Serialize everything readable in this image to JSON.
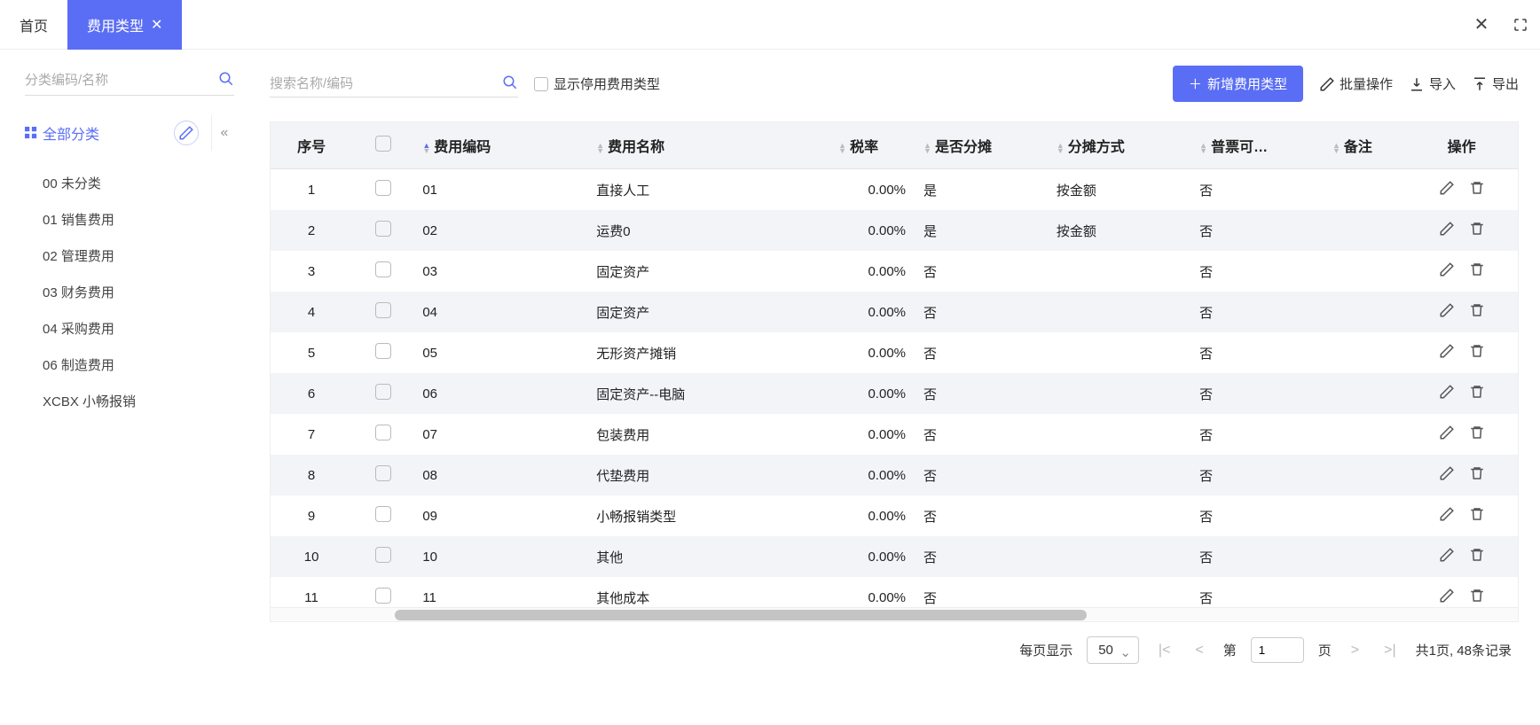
{
  "tabs": {
    "home": "首页",
    "active": "费用类型"
  },
  "sidebar": {
    "search_ph": "分类编码/名称",
    "all_label": "全部分类",
    "items": [
      "00 未分类",
      "01 销售费用",
      "02 管理费用",
      "03 财务费用",
      "04 采购费用",
      "06 制造费用",
      "XCBX 小畅报销"
    ]
  },
  "toolbar": {
    "search_ph": "搜索名称/编码",
    "show_disabled": "显示停用费用类型",
    "add": "新增费用类型",
    "batch": "批量操作",
    "import": "导入",
    "export": "导出"
  },
  "columns": {
    "seq": "序号",
    "code": "费用编码",
    "name": "费用名称",
    "rate": "税率",
    "allocate": "是否分摊",
    "method": "分摊方式",
    "plain": "普票可…",
    "remark": "备注",
    "ops": "操作"
  },
  "rows": [
    {
      "seq": "1",
      "code": "01",
      "name": "直接人工",
      "rate": "0.00%",
      "allocate": "是",
      "method": "按金额",
      "plain": "否"
    },
    {
      "seq": "2",
      "code": "02",
      "name": "运费0",
      "rate": "0.00%",
      "allocate": "是",
      "method": "按金额",
      "plain": "否"
    },
    {
      "seq": "3",
      "code": "03",
      "name": "固定资产",
      "rate": "0.00%",
      "allocate": "否",
      "method": "",
      "plain": "否"
    },
    {
      "seq": "4",
      "code": "04",
      "name": "固定资产",
      "rate": "0.00%",
      "allocate": "否",
      "method": "",
      "plain": "否"
    },
    {
      "seq": "5",
      "code": "05",
      "name": "无形资产摊销",
      "rate": "0.00%",
      "allocate": "否",
      "method": "",
      "plain": "否"
    },
    {
      "seq": "6",
      "code": "06",
      "name": "固定资产--电脑",
      "rate": "0.00%",
      "allocate": "否",
      "method": "",
      "plain": "否"
    },
    {
      "seq": "7",
      "code": "07",
      "name": "包装费用",
      "rate": "0.00%",
      "allocate": "否",
      "method": "",
      "plain": "否"
    },
    {
      "seq": "8",
      "code": "08",
      "name": "代垫费用",
      "rate": "0.00%",
      "allocate": "否",
      "method": "",
      "plain": "否"
    },
    {
      "seq": "9",
      "code": "09",
      "name": "小畅报销类型",
      "rate": "0.00%",
      "allocate": "否",
      "method": "",
      "plain": "否"
    },
    {
      "seq": "10",
      "code": "10",
      "name": "其他",
      "rate": "0.00%",
      "allocate": "否",
      "method": "",
      "plain": "否"
    },
    {
      "seq": "11",
      "code": "11",
      "name": "其他成本",
      "rate": "0.00%",
      "allocate": "否",
      "method": "",
      "plain": "否"
    }
  ],
  "footer": {
    "per_page_label": "每页显示",
    "page_size": "50",
    "page_label_prefix": "第",
    "page_no": "1",
    "page_label_suffix": "页",
    "summary": "共1页, 48条记录"
  },
  "colors": {
    "primary": "#5a6ef5",
    "header_bg": "#f3f4f8"
  }
}
